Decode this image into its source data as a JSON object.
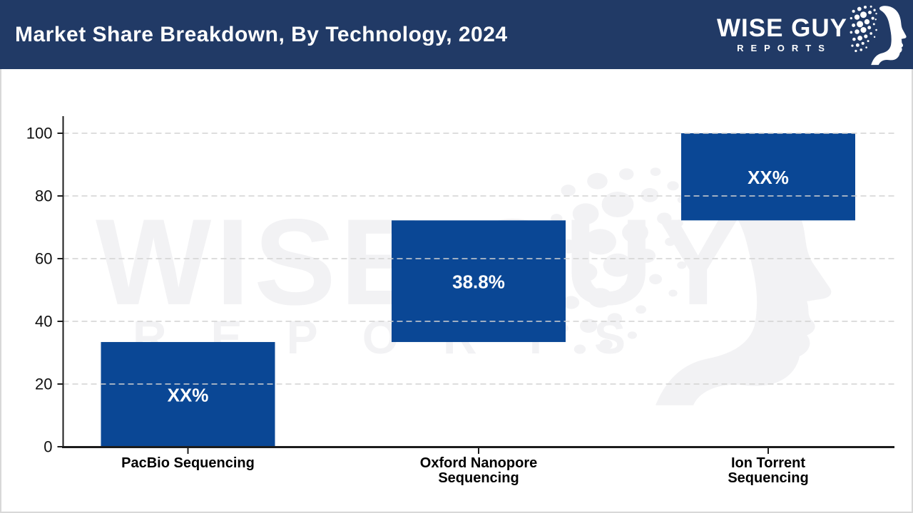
{
  "header": {
    "title": "Market Share Breakdown, By Technology, 2024",
    "logo": {
      "brand": "WISE GUY",
      "subbrand": "REPORTS"
    }
  },
  "watermark": {
    "brand": "WISE GUY",
    "subbrand": "REPORTS"
  },
  "chart_data": {
    "type": "bar",
    "subtype": "waterfall",
    "title": "Market Share Breakdown, By Technology, 2024",
    "categories": [
      "PacBio Sequencing",
      "Oxford Nanopore Sequencing",
      "Ion Torrent Sequencing"
    ],
    "category_label_lines": [
      [
        "PacBio Sequencing"
      ],
      [
        "Oxford Nanopore",
        "Sequencing"
      ],
      [
        "Ion Torrent",
        "Sequencing"
      ]
    ],
    "bars": [
      {
        "category": "PacBio Sequencing",
        "base": 0,
        "top": 33.4,
        "label": "XX%"
      },
      {
        "category": "Oxford Nanopore Sequencing",
        "base": 33.4,
        "top": 72.2,
        "label": "38.8%"
      },
      {
        "category": "Ion Torrent Sequencing",
        "base": 72.2,
        "top": 100,
        "label": "XX%"
      }
    ],
    "xlabel": "",
    "ylabel": "",
    "ylim": [
      0,
      100
    ],
    "yticks": [
      0,
      20,
      40,
      60,
      80,
      100
    ],
    "grid": "horizontal-dashed-over-bars",
    "legend": "none",
    "bar_color": "#0a4795",
    "value_label_color": "#ffffff"
  },
  "colors": {
    "header_bg": "#213a66",
    "bar_blue": "#0a4795",
    "gridline": "#d2d2d2",
    "axis": "#1c1c1c",
    "watermark": "#f2f2f4",
    "page_border": "#d8d8d8"
  }
}
